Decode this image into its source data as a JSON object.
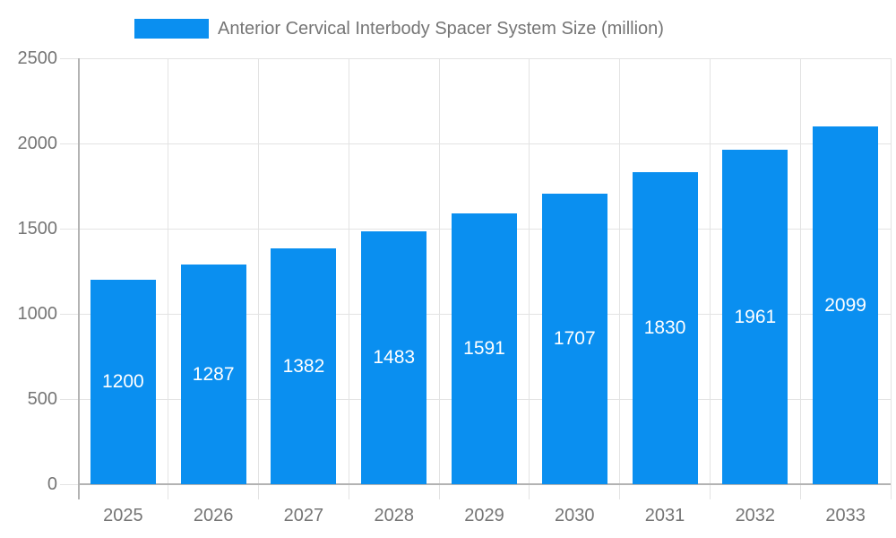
{
  "chart_data": {
    "type": "bar",
    "title": "Anterior Cervical Interbody Spacer System Size (million)",
    "categories": [
      "2025",
      "2026",
      "2027",
      "2028",
      "2029",
      "2030",
      "2031",
      "2032",
      "2033"
    ],
    "values": [
      1200,
      1287,
      1382,
      1483,
      1591,
      1707,
      1830,
      1961,
      2099
    ],
    "series": [
      {
        "name": "Anterior Cervical Interbody Spacer System Size (million)",
        "values": [
          1200,
          1287,
          1382,
          1483,
          1591,
          1707,
          1830,
          1961,
          2099
        ]
      }
    ],
    "xlabel": "",
    "ylabel": "",
    "ylim": [
      0,
      2500
    ],
    "yticks": [
      0,
      500,
      1000,
      1500,
      2000,
      2500
    ],
    "grid": true,
    "legend_position": "top",
    "bar_labels_inside": true
  },
  "colors": {
    "bar": "#0a8ff0",
    "bar_label": "#ffffff",
    "axis_text": "#757575",
    "legend_text": "#757575",
    "gridline": "#e3e3e3",
    "axis_line": "#b3b3b3",
    "background": "#ffffff"
  }
}
